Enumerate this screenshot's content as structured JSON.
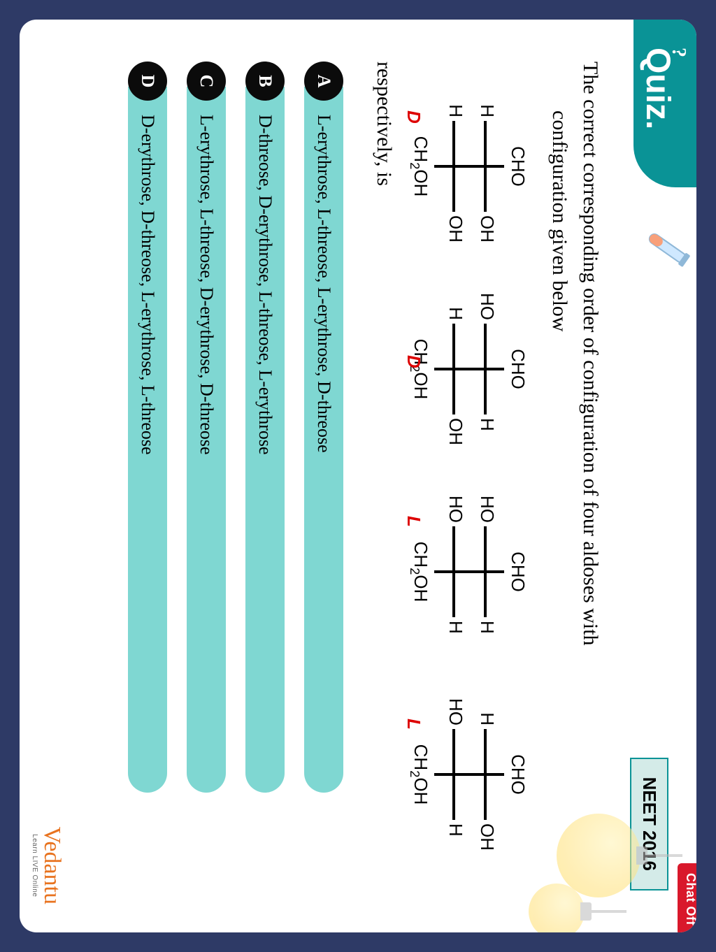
{
  "colors": {
    "page_bg": "#2e3a66",
    "card_bg": "#ffffff",
    "quiz_tab_bg": "#0a9396",
    "neet_badge_bg": "#d4ebe8",
    "neet_badge_border": "#0a9396",
    "option_letter_bg": "#0b0b0b",
    "option_bar_bg": "#7fd7d2",
    "chat_off_bg": "#d9182b",
    "annotation_color": "#d00000",
    "brand_color": "#e8731f"
  },
  "quiz_label": "Quiz.",
  "quiz_icon": "?",
  "neet_badge": "NEET 2016",
  "chat_off": "Chat Off",
  "question_line1": "The correct corresponding order of configuration of four aldoses with",
  "question_line2": "configuration given below",
  "respectively": "respectively, is",
  "fischer": [
    {
      "top": "CHO",
      "c1_left": "H",
      "c1_right": "OH",
      "c2_left": "H",
      "c2_right": "OH",
      "bottom": "CH₂OH",
      "annotation": "D",
      "ann_pos": "left"
    },
    {
      "top": "CHO",
      "c1_left": "HO",
      "c1_right": "H",
      "c2_left": "H",
      "c2_right": "OH",
      "bottom": "CH₂OH",
      "annotation": "D",
      "ann_pos": "center"
    },
    {
      "top": "CHO",
      "c1_left": "HO",
      "c1_right": "H",
      "c2_left": "HO",
      "c2_right": "H",
      "bottom": "CH₂OH",
      "annotation": "L",
      "ann_pos": "left"
    },
    {
      "top": "CHO",
      "c1_left": "H",
      "c1_right": "OH",
      "c2_left": "HO",
      "c2_right": "H",
      "bottom": "CH₂OH",
      "annotation": "L",
      "ann_pos": "left"
    }
  ],
  "options": [
    {
      "letter": "A",
      "text": "L-erythrose, L-threose, L-erythrose, D-threose"
    },
    {
      "letter": "B",
      "text": "D-threose, D-erythrose, L-threose, L-erythrose"
    },
    {
      "letter": "C",
      "text": "L-erythrose, L-threose, D-erythrose, D-threose"
    },
    {
      "letter": "D",
      "text": "D-erythrose, D-threose, L-erythrose, L-threose"
    }
  ],
  "brand": {
    "name": "Vedantu",
    "sub": "Learn LIVE Online"
  }
}
